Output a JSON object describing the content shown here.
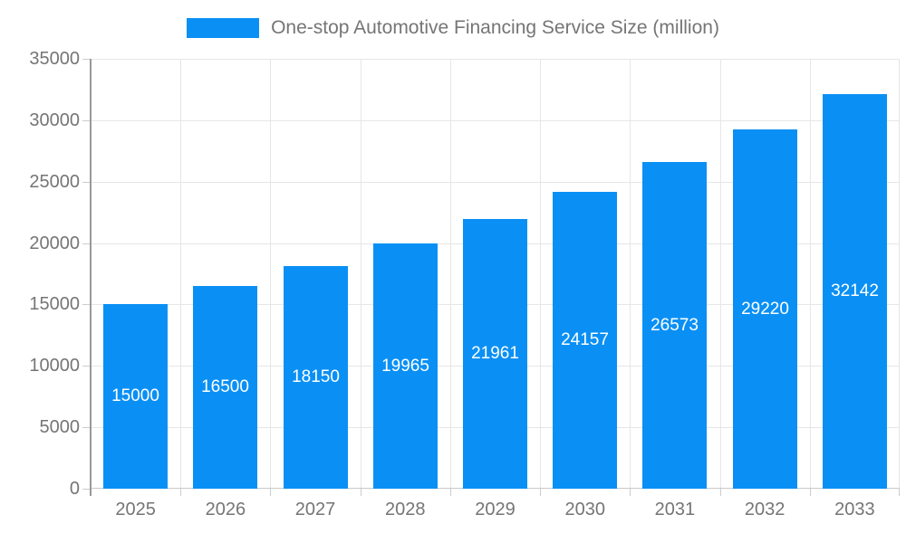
{
  "legend": {
    "label": "One-stop Automotive Financing Service Size (million)"
  },
  "chart_data": {
    "type": "bar",
    "title": "One-stop Automotive Financing Service Size (million)",
    "categories": [
      "2025",
      "2026",
      "2027",
      "2028",
      "2029",
      "2030",
      "2031",
      "2032",
      "2033"
    ],
    "values": [
      15000,
      16500,
      18150,
      19965,
      21961,
      24157,
      26573,
      29220,
      32142
    ],
    "xlabel": "",
    "ylabel": "",
    "ylim": [
      0,
      35000
    ],
    "yticks": [
      0,
      5000,
      10000,
      15000,
      20000,
      25000,
      30000,
      35000
    ],
    "grid": true,
    "legend_position": "top",
    "bar_color": "#0a90f5",
    "value_label_color": "#ffffff",
    "axis_text_color": "#757575",
    "grid_color": "#e6e6e6",
    "axis_line_color": "#999999"
  }
}
